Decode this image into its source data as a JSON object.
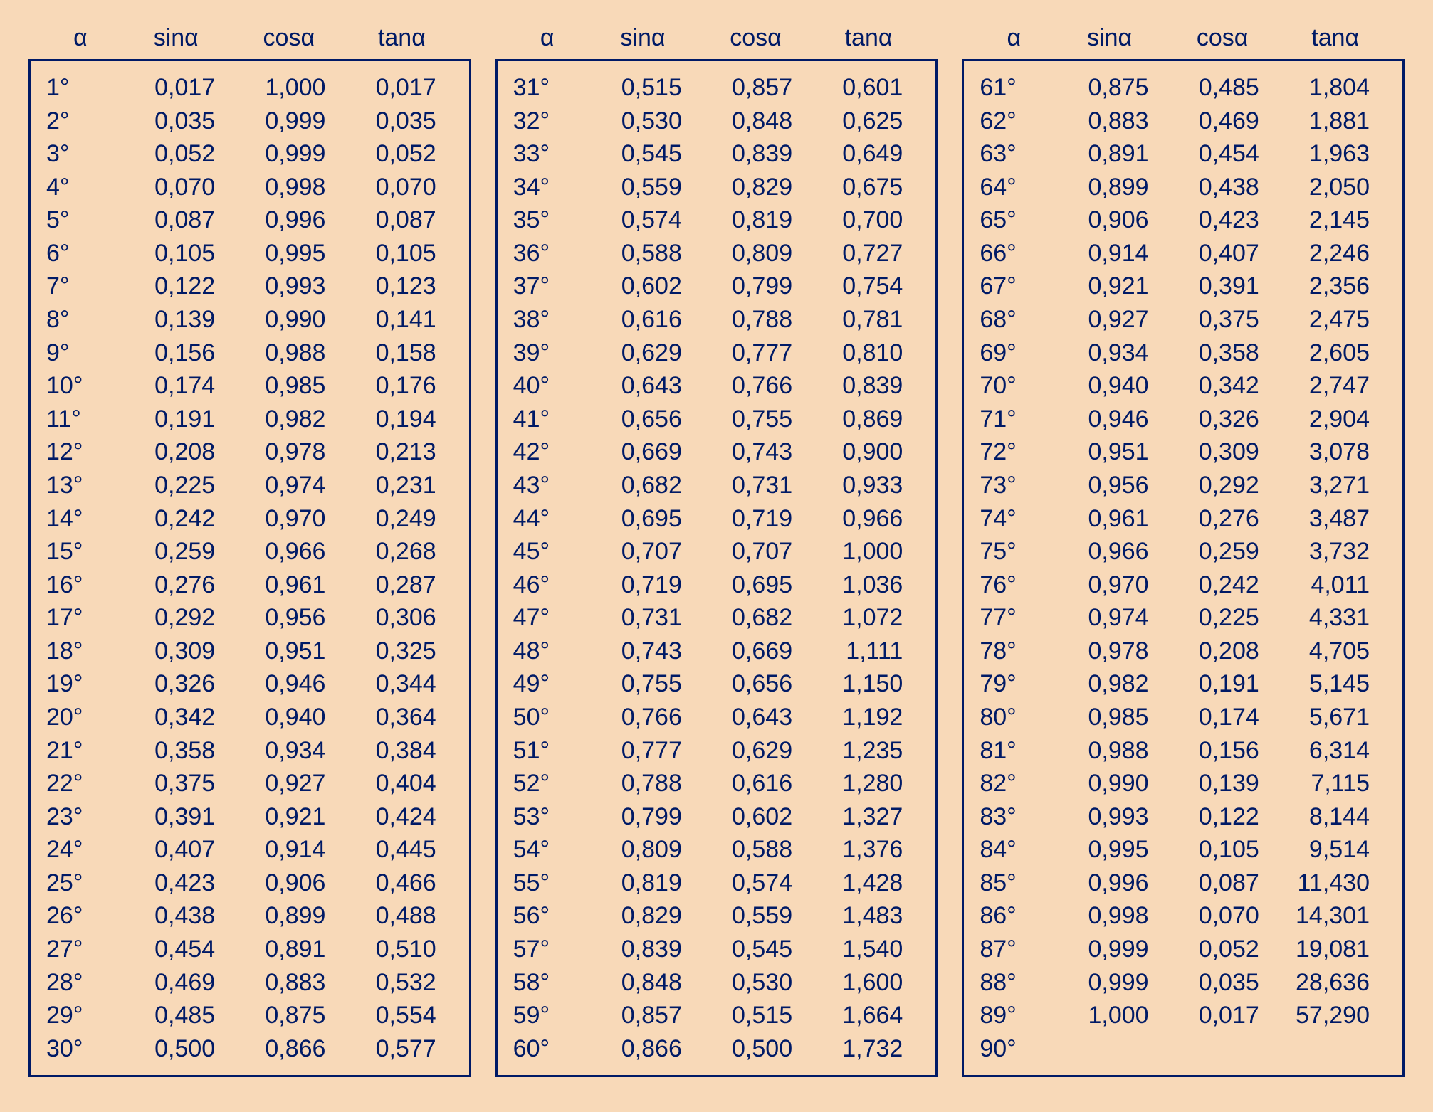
{
  "background_color": "#f8d9b8",
  "text_color": "#001a66",
  "border_color": "#001a66",
  "font_family": "Arial",
  "header_fontsize": 34,
  "cell_fontsize": 34,
  "headers": {
    "alpha": "α",
    "sin": "sinα",
    "cos": "cosα",
    "tan": "tanα"
  },
  "panels": [
    {
      "rows": [
        {
          "a": "1°",
          "s": "0,017",
          "c": "1,000",
          "t": "0,017"
        },
        {
          "a": "2°",
          "s": "0,035",
          "c": "0,999",
          "t": "0,035"
        },
        {
          "a": "3°",
          "s": "0,052",
          "c": "0,999",
          "t": "0,052"
        },
        {
          "a": "4°",
          "s": "0,070",
          "c": "0,998",
          "t": "0,070"
        },
        {
          "a": "5°",
          "s": "0,087",
          "c": "0,996",
          "t": "0,087"
        },
        {
          "a": "6°",
          "s": "0,105",
          "c": "0,995",
          "t": "0,105"
        },
        {
          "a": "7°",
          "s": "0,122",
          "c": "0,993",
          "t": "0,123"
        },
        {
          "a": "8°",
          "s": "0,139",
          "c": "0,990",
          "t": "0,141"
        },
        {
          "a": "9°",
          "s": "0,156",
          "c": "0,988",
          "t": "0,158"
        },
        {
          "a": "10°",
          "s": "0,174",
          "c": "0,985",
          "t": "0,176"
        },
        {
          "a": "11°",
          "s": "0,191",
          "c": "0,982",
          "t": "0,194"
        },
        {
          "a": "12°",
          "s": "0,208",
          "c": "0,978",
          "t": "0,213"
        },
        {
          "a": "13°",
          "s": "0,225",
          "c": "0,974",
          "t": "0,231"
        },
        {
          "a": "14°",
          "s": "0,242",
          "c": "0,970",
          "t": "0,249"
        },
        {
          "a": "15°",
          "s": "0,259",
          "c": "0,966",
          "t": "0,268"
        },
        {
          "a": "16°",
          "s": "0,276",
          "c": "0,961",
          "t": "0,287"
        },
        {
          "a": "17°",
          "s": "0,292",
          "c": "0,956",
          "t": "0,306"
        },
        {
          "a": "18°",
          "s": "0,309",
          "c": "0,951",
          "t": "0,325"
        },
        {
          "a": "19°",
          "s": "0,326",
          "c": "0,946",
          "t": "0,344"
        },
        {
          "a": "20°",
          "s": "0,342",
          "c": "0,940",
          "t": "0,364"
        },
        {
          "a": "21°",
          "s": "0,358",
          "c": "0,934",
          "t": "0,384"
        },
        {
          "a": "22°",
          "s": "0,375",
          "c": "0,927",
          "t": "0,404"
        },
        {
          "a": "23°",
          "s": "0,391",
          "c": "0,921",
          "t": "0,424"
        },
        {
          "a": "24°",
          "s": "0,407",
          "c": "0,914",
          "t": "0,445"
        },
        {
          "a": "25°",
          "s": "0,423",
          "c": "0,906",
          "t": "0,466"
        },
        {
          "a": "26°",
          "s": "0,438",
          "c": "0,899",
          "t": "0,488"
        },
        {
          "a": "27°",
          "s": "0,454",
          "c": "0,891",
          "t": "0,510"
        },
        {
          "a": "28°",
          "s": "0,469",
          "c": "0,883",
          "t": "0,532"
        },
        {
          "a": "29°",
          "s": "0,485",
          "c": "0,875",
          "t": "0,554"
        },
        {
          "a": "30°",
          "s": "0,500",
          "c": "0,866",
          "t": "0,577"
        }
      ]
    },
    {
      "rows": [
        {
          "a": "31°",
          "s": "0,515",
          "c": "0,857",
          "t": "0,601"
        },
        {
          "a": "32°",
          "s": "0,530",
          "c": "0,848",
          "t": "0,625"
        },
        {
          "a": "33°",
          "s": "0,545",
          "c": "0,839",
          "t": "0,649"
        },
        {
          "a": "34°",
          "s": "0,559",
          "c": "0,829",
          "t": "0,675"
        },
        {
          "a": "35°",
          "s": "0,574",
          "c": "0,819",
          "t": "0,700"
        },
        {
          "a": "36°",
          "s": "0,588",
          "c": "0,809",
          "t": "0,727"
        },
        {
          "a": "37°",
          "s": "0,602",
          "c": "0,799",
          "t": "0,754"
        },
        {
          "a": "38°",
          "s": "0,616",
          "c": "0,788",
          "t": "0,781"
        },
        {
          "a": "39°",
          "s": "0,629",
          "c": "0,777",
          "t": "0,810"
        },
        {
          "a": "40°",
          "s": "0,643",
          "c": "0,766",
          "t": "0,839"
        },
        {
          "a": "41°",
          "s": "0,656",
          "c": "0,755",
          "t": "0,869"
        },
        {
          "a": "42°",
          "s": "0,669",
          "c": "0,743",
          "t": "0,900"
        },
        {
          "a": "43°",
          "s": "0,682",
          "c": "0,731",
          "t": "0,933"
        },
        {
          "a": "44°",
          "s": "0,695",
          "c": "0,719",
          "t": "0,966"
        },
        {
          "a": "45°",
          "s": "0,707",
          "c": "0,707",
          "t": "1,000"
        },
        {
          "a": "46°",
          "s": "0,719",
          "c": "0,695",
          "t": "1,036"
        },
        {
          "a": "47°",
          "s": "0,731",
          "c": "0,682",
          "t": "1,072"
        },
        {
          "a": "48°",
          "s": "0,743",
          "c": "0,669",
          "t": "1,111"
        },
        {
          "a": "49°",
          "s": "0,755",
          "c": "0,656",
          "t": "1,150"
        },
        {
          "a": "50°",
          "s": "0,766",
          "c": "0,643",
          "t": "1,192"
        },
        {
          "a": "51°",
          "s": "0,777",
          "c": "0,629",
          "t": "1,235"
        },
        {
          "a": "52°",
          "s": "0,788",
          "c": "0,616",
          "t": "1,280"
        },
        {
          "a": "53°",
          "s": "0,799",
          "c": "0,602",
          "t": "1,327"
        },
        {
          "a": "54°",
          "s": "0,809",
          "c": "0,588",
          "t": "1,376"
        },
        {
          "a": "55°",
          "s": "0,819",
          "c": "0,574",
          "t": "1,428"
        },
        {
          "a": "56°",
          "s": "0,829",
          "c": "0,559",
          "t": "1,483"
        },
        {
          "a": "57°",
          "s": "0,839",
          "c": "0,545",
          "t": "1,540"
        },
        {
          "a": "58°",
          "s": "0,848",
          "c": "0,530",
          "t": "1,600"
        },
        {
          "a": "59°",
          "s": "0,857",
          "c": "0,515",
          "t": "1,664"
        },
        {
          "a": "60°",
          "s": "0,866",
          "c": "0,500",
          "t": "1,732"
        }
      ]
    },
    {
      "rows": [
        {
          "a": "61°",
          "s": "0,875",
          "c": "0,485",
          "t": "1,804"
        },
        {
          "a": "62°",
          "s": "0,883",
          "c": "0,469",
          "t": "1,881"
        },
        {
          "a": "63°",
          "s": "0,891",
          "c": "0,454",
          "t": "1,963"
        },
        {
          "a": "64°",
          "s": "0,899",
          "c": "0,438",
          "t": "2,050"
        },
        {
          "a": "65°",
          "s": "0,906",
          "c": "0,423",
          "t": "2,145"
        },
        {
          "a": "66°",
          "s": "0,914",
          "c": "0,407",
          "t": "2,246"
        },
        {
          "a": "67°",
          "s": "0,921",
          "c": "0,391",
          "t": "2,356"
        },
        {
          "a": "68°",
          "s": "0,927",
          "c": "0,375",
          "t": "2,475"
        },
        {
          "a": "69°",
          "s": "0,934",
          "c": "0,358",
          "t": "2,605"
        },
        {
          "a": "70°",
          "s": "0,940",
          "c": "0,342",
          "t": "2,747"
        },
        {
          "a": "71°",
          "s": "0,946",
          "c": "0,326",
          "t": "2,904"
        },
        {
          "a": "72°",
          "s": "0,951",
          "c": "0,309",
          "t": "3,078"
        },
        {
          "a": "73°",
          "s": "0,956",
          "c": "0,292",
          "t": "3,271"
        },
        {
          "a": "74°",
          "s": "0,961",
          "c": "0,276",
          "t": "3,487"
        },
        {
          "a": "75°",
          "s": "0,966",
          "c": "0,259",
          "t": "3,732"
        },
        {
          "a": "76°",
          "s": "0,970",
          "c": "0,242",
          "t": "4,011"
        },
        {
          "a": "77°",
          "s": "0,974",
          "c": "0,225",
          "t": "4,331"
        },
        {
          "a": "78°",
          "s": "0,978",
          "c": "0,208",
          "t": "4,705"
        },
        {
          "a": "79°",
          "s": "0,982",
          "c": "0,191",
          "t": "5,145"
        },
        {
          "a": "80°",
          "s": "0,985",
          "c": "0,174",
          "t": "5,671"
        },
        {
          "a": "81°",
          "s": "0,988",
          "c": "0,156",
          "t": "6,314"
        },
        {
          "a": "82°",
          "s": "0,990",
          "c": "0,139",
          "t": "7,115"
        },
        {
          "a": "83°",
          "s": "0,993",
          "c": "0,122",
          "t": "8,144"
        },
        {
          "a": "84°",
          "s": "0,995",
          "c": "0,105",
          "t": "9,514"
        },
        {
          "a": "85°",
          "s": "0,996",
          "c": "0,087",
          "t": "11,430"
        },
        {
          "a": "86°",
          "s": "0,998",
          "c": "0,070",
          "t": "14,301"
        },
        {
          "a": "87°",
          "s": "0,999",
          "c": "0,052",
          "t": "19,081"
        },
        {
          "a": "88°",
          "s": "0,999",
          "c": "0,035",
          "t": "28,636"
        },
        {
          "a": "89°",
          "s": "1,000",
          "c": "0,017",
          "t": "57,290"
        },
        {
          "a": "90°",
          "s": "",
          "c": "",
          "t": ""
        }
      ]
    }
  ]
}
